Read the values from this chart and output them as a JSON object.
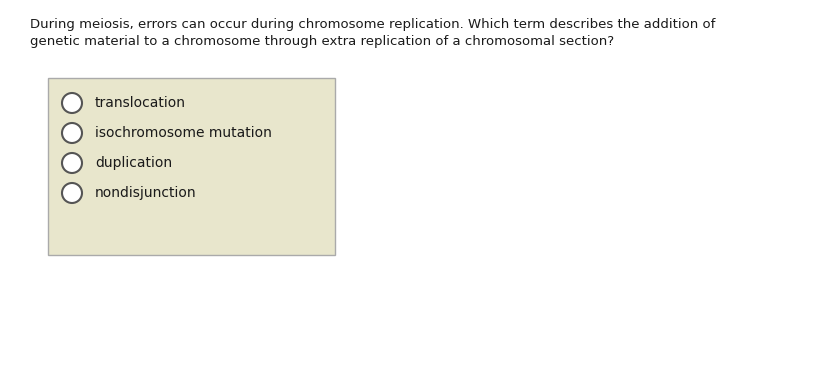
{
  "question": "During meiosis, errors can occur during chromosome replication. Which term describes the addition of\ngenetic material to a chromosome through extra replication of a chromosomal section?",
  "options": [
    "translocation",
    "isochromosome mutation",
    "duplication",
    "nondisjunction"
  ],
  "bg_color": "#ffffff",
  "box_bg_color": "#e8e6cc",
  "box_border_color": "#aaaaaa",
  "text_color": "#1a1a1a",
  "question_fontsize": 9.5,
  "option_fontsize": 10,
  "circle_color": "#555555"
}
